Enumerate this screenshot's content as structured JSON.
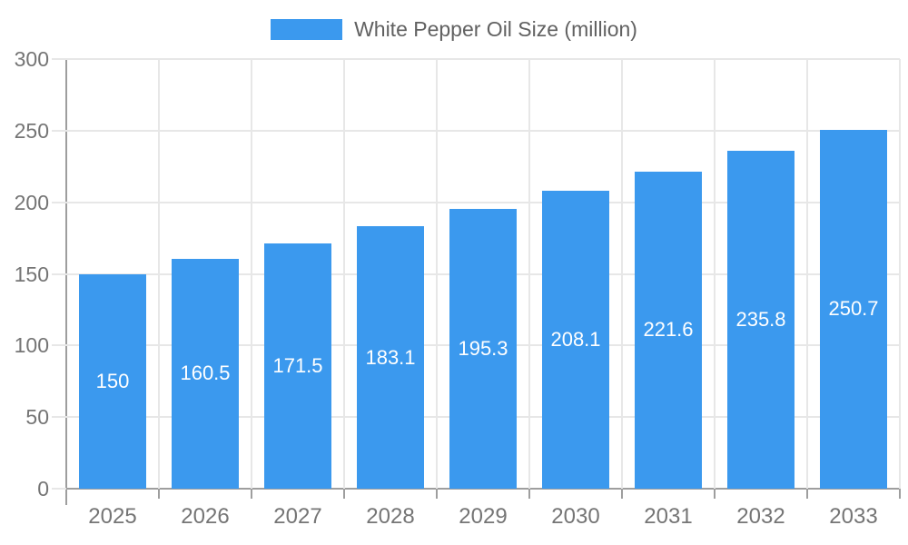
{
  "legend": {
    "label": "White Pepper Oil Size (million)"
  },
  "chart_data": {
    "type": "bar",
    "title": "White Pepper Oil Size (million)",
    "categories": [
      "2025",
      "2026",
      "2027",
      "2028",
      "2029",
      "2030",
      "2031",
      "2032",
      "2033"
    ],
    "series": [
      {
        "name": "White Pepper Oil Size (million)",
        "values": [
          150,
          160.5,
          171.5,
          183.1,
          195.3,
          208.1,
          221.6,
          235.8,
          250.7
        ]
      }
    ],
    "value_labels": [
      "150",
      "160.5",
      "171.5",
      "183.1",
      "195.3",
      "208.1",
      "221.6",
      "235.8",
      "250.7"
    ],
    "xlabel": "",
    "ylabel": "",
    "ylim": [
      0,
      300
    ],
    "y_ticks": [
      0,
      50,
      100,
      150,
      200,
      250,
      300
    ],
    "grid": true,
    "legend_position": "top"
  },
  "colors": {
    "bar": "#3B99EE",
    "bar_value_label": "#ffffff",
    "axis_line": "#9e9e9e",
    "grid_line": "#e7e7e7",
    "tick_text": "#757575",
    "legend_text": "#616161",
    "background": "#ffffff"
  }
}
